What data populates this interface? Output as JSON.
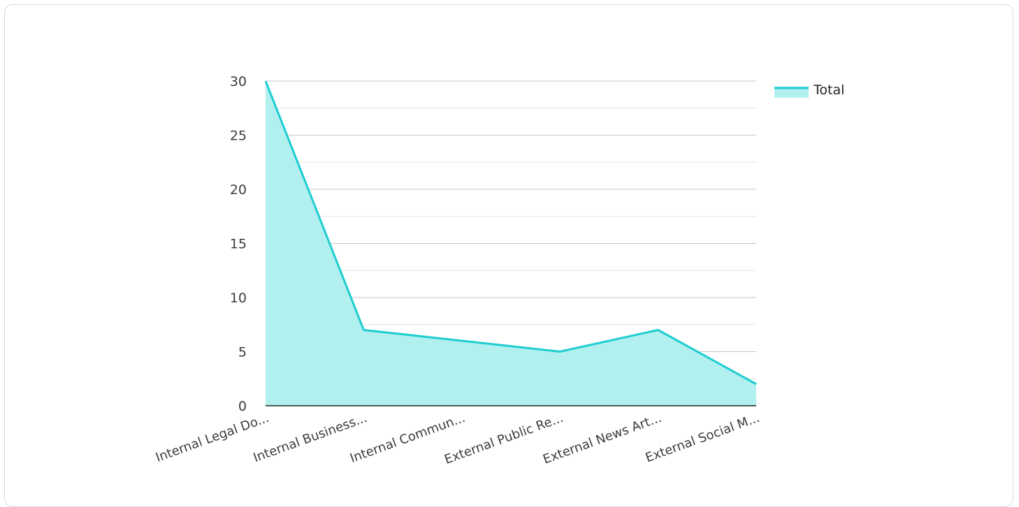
{
  "chart_data": {
    "type": "area",
    "categories": [
      "Internal Legal Do...",
      "Internal Business...",
      "Internal Commun...",
      "External Public Re...",
      "External News Art...",
      "External Social M..."
    ],
    "series": [
      {
        "name": "Total",
        "values": [
          30,
          7,
          6,
          5,
          7,
          2
        ]
      }
    ],
    "yticks": [
      "0",
      "5",
      "10",
      "15",
      "20",
      "25",
      "30"
    ],
    "ylim": [
      0,
      30
    ],
    "grid": true,
    "legend_position": "top-right",
    "colors": {
      "line": "#1ecdd1",
      "fill": "#b2efef",
      "grid": "#c8c8c8",
      "minor_grid": "#e6e6e6",
      "axis": "#222222"
    }
  }
}
